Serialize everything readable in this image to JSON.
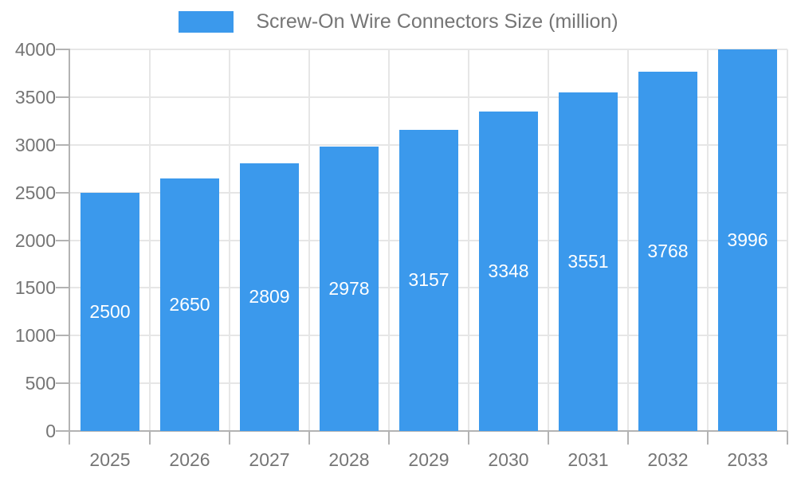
{
  "chart_data": {
    "type": "bar",
    "title": "Screw-On Wire Connectors Size (million)",
    "legend": "Screw-On Wire Connectors Size (million)",
    "legend_position": "top",
    "categories": [
      "2025",
      "2026",
      "2027",
      "2028",
      "2029",
      "2030",
      "2031",
      "2032",
      "2033"
    ],
    "series": [
      {
        "name": "Screw-On Wire Connectors Size (million)",
        "values": [
          2500,
          2650,
          2809,
          2978,
          3157,
          3348,
          3551,
          3768,
          3996
        ]
      }
    ],
    "xlabel": "",
    "ylabel": "",
    "ylim": [
      0,
      4000
    ],
    "ytick_step": 500,
    "grid": true,
    "colors": {
      "bar": "#3b99ec",
      "value_label": "#ffffff",
      "axis_text": "#757575",
      "axis_line": "#b3b3b3",
      "gridline": "#e6e6e6",
      "background": "#ffffff"
    }
  }
}
